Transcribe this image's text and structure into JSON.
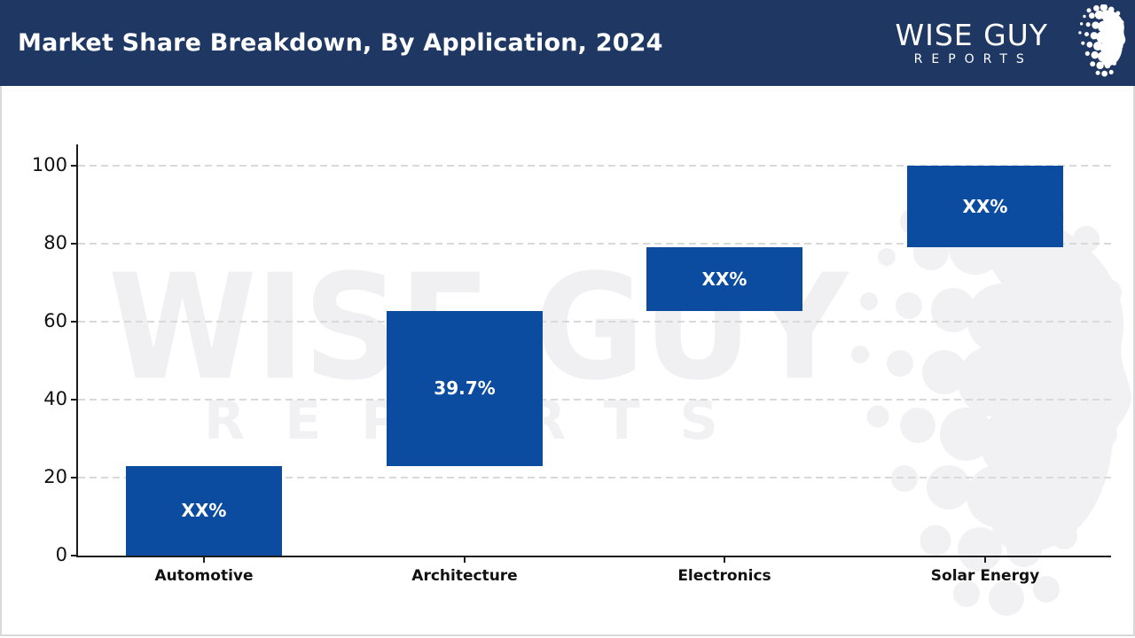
{
  "header": {
    "title": "Market Share Breakdown, By Application, 2024",
    "bg_color": "#1F3863",
    "logo": {
      "line1": "WISE GUY",
      "line2": "REPORTS"
    }
  },
  "watermark": {
    "line1": "WISE GUY",
    "line2": "REPORTS"
  },
  "chart_data": {
    "type": "bar",
    "subtype": "waterfall",
    "title": "Market Share Breakdown, By Application, 2024",
    "categories": [
      "Automotive",
      "Architecture",
      "Electronics",
      "Solar Energy"
    ],
    "series": [
      {
        "name": "Market share (%)",
        "values": [
          23,
          39.7,
          16.3,
          21
        ],
        "starts": [
          0,
          23,
          62.7,
          79
        ],
        "ends": [
          23,
          62.7,
          79,
          100
        ]
      }
    ],
    "bar_labels": [
      "XX%",
      "39.7%",
      "XX%",
      "XX%"
    ],
    "yticks": [
      0,
      20,
      40,
      60,
      80,
      100
    ],
    "ylim": [
      0,
      105
    ],
    "xlabel": "",
    "ylabel": "",
    "grid": "horizontal-dashed",
    "legend": "none",
    "bar_color": "#0B4BA0",
    "label_color": "#FFFFFF",
    "grid_color": "#D9D9D9",
    "axis_color": "#1C1C1C"
  }
}
